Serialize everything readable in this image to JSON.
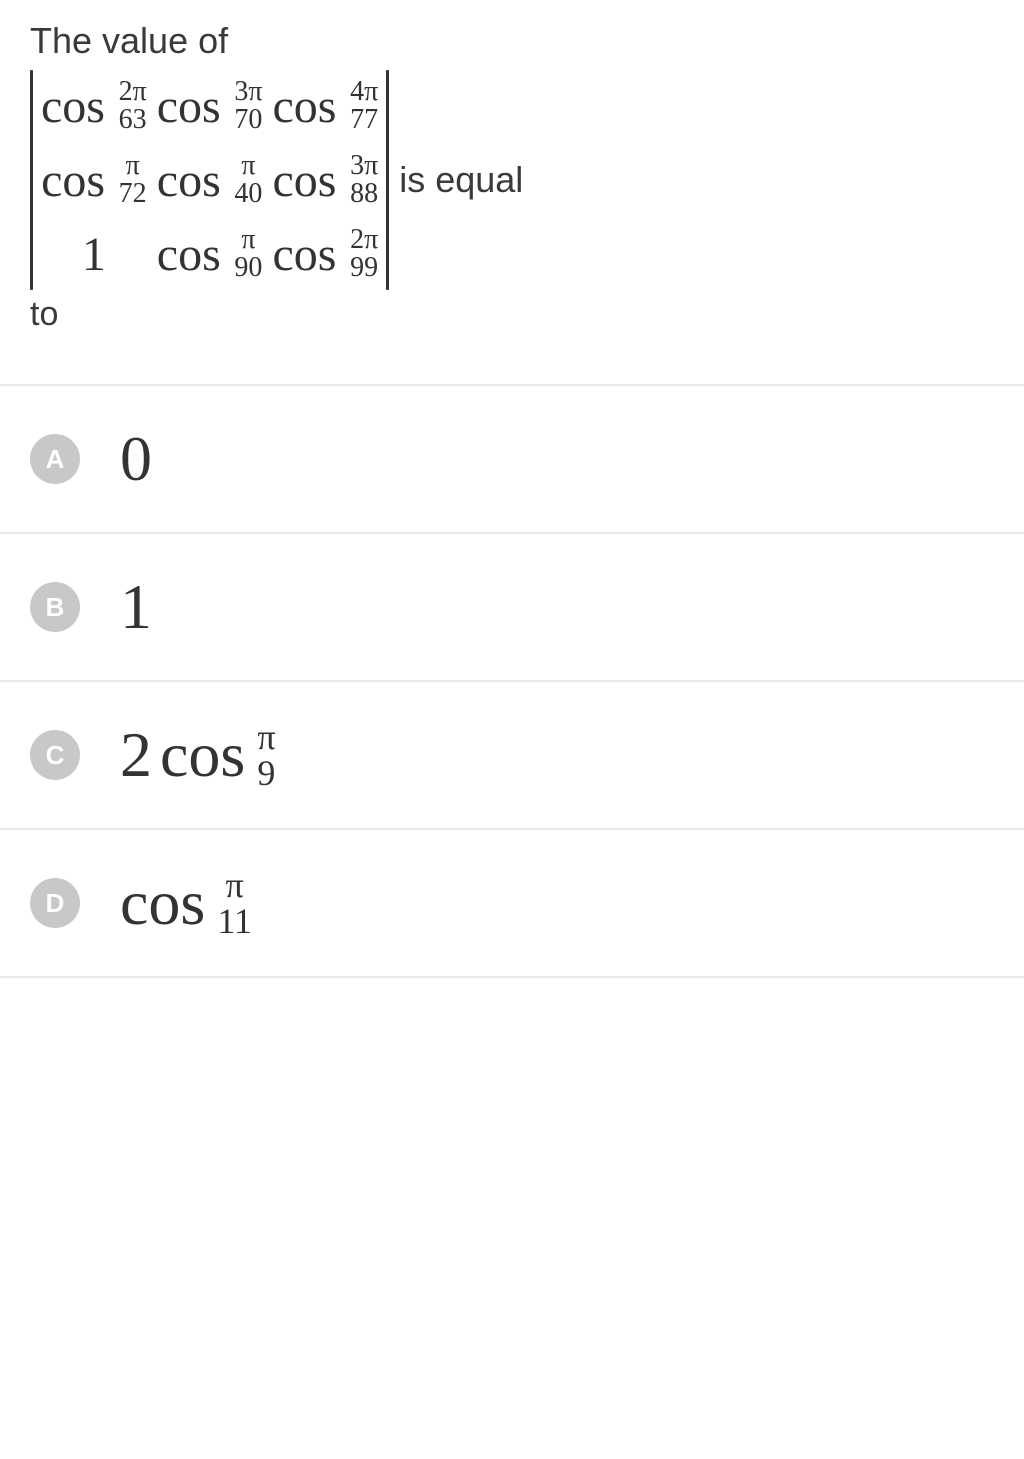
{
  "colors": {
    "text": "#3a3a3a",
    "math": "#333333",
    "divider": "#e8e8e8",
    "badge_bg": "#c8c8ca",
    "badge_fg": "#ffffff",
    "background": "#ffffff"
  },
  "question": {
    "lead": "The value of",
    "matrix": [
      [
        {
          "fn": "cos",
          "num": "2π",
          "den": "63"
        },
        {
          "fn": "cos",
          "num": "3π",
          "den": "70"
        },
        {
          "fn": "cos",
          "num": "4π",
          "den": "77"
        }
      ],
      [
        {
          "fn": "cos",
          "num": "π",
          "den": "72"
        },
        {
          "fn": "cos",
          "num": "π",
          "den": "40"
        },
        {
          "fn": "cos",
          "num": "3π",
          "den": "88"
        }
      ],
      [
        {
          "plain": "1"
        },
        {
          "fn": "cos",
          "num": "π",
          "den": "90"
        },
        {
          "fn": "cos",
          "num": "2π",
          "den": "99"
        }
      ]
    ],
    "suffix": "is equal",
    "trail": "to"
  },
  "options": [
    {
      "letter": "A",
      "plain": "0"
    },
    {
      "letter": "B",
      "plain": "1"
    },
    {
      "letter": "C",
      "coef": "2",
      "fn": "cos",
      "num": "π",
      "den": "9"
    },
    {
      "letter": "D",
      "fn": "cos",
      "num": "π",
      "den": "11"
    }
  ]
}
